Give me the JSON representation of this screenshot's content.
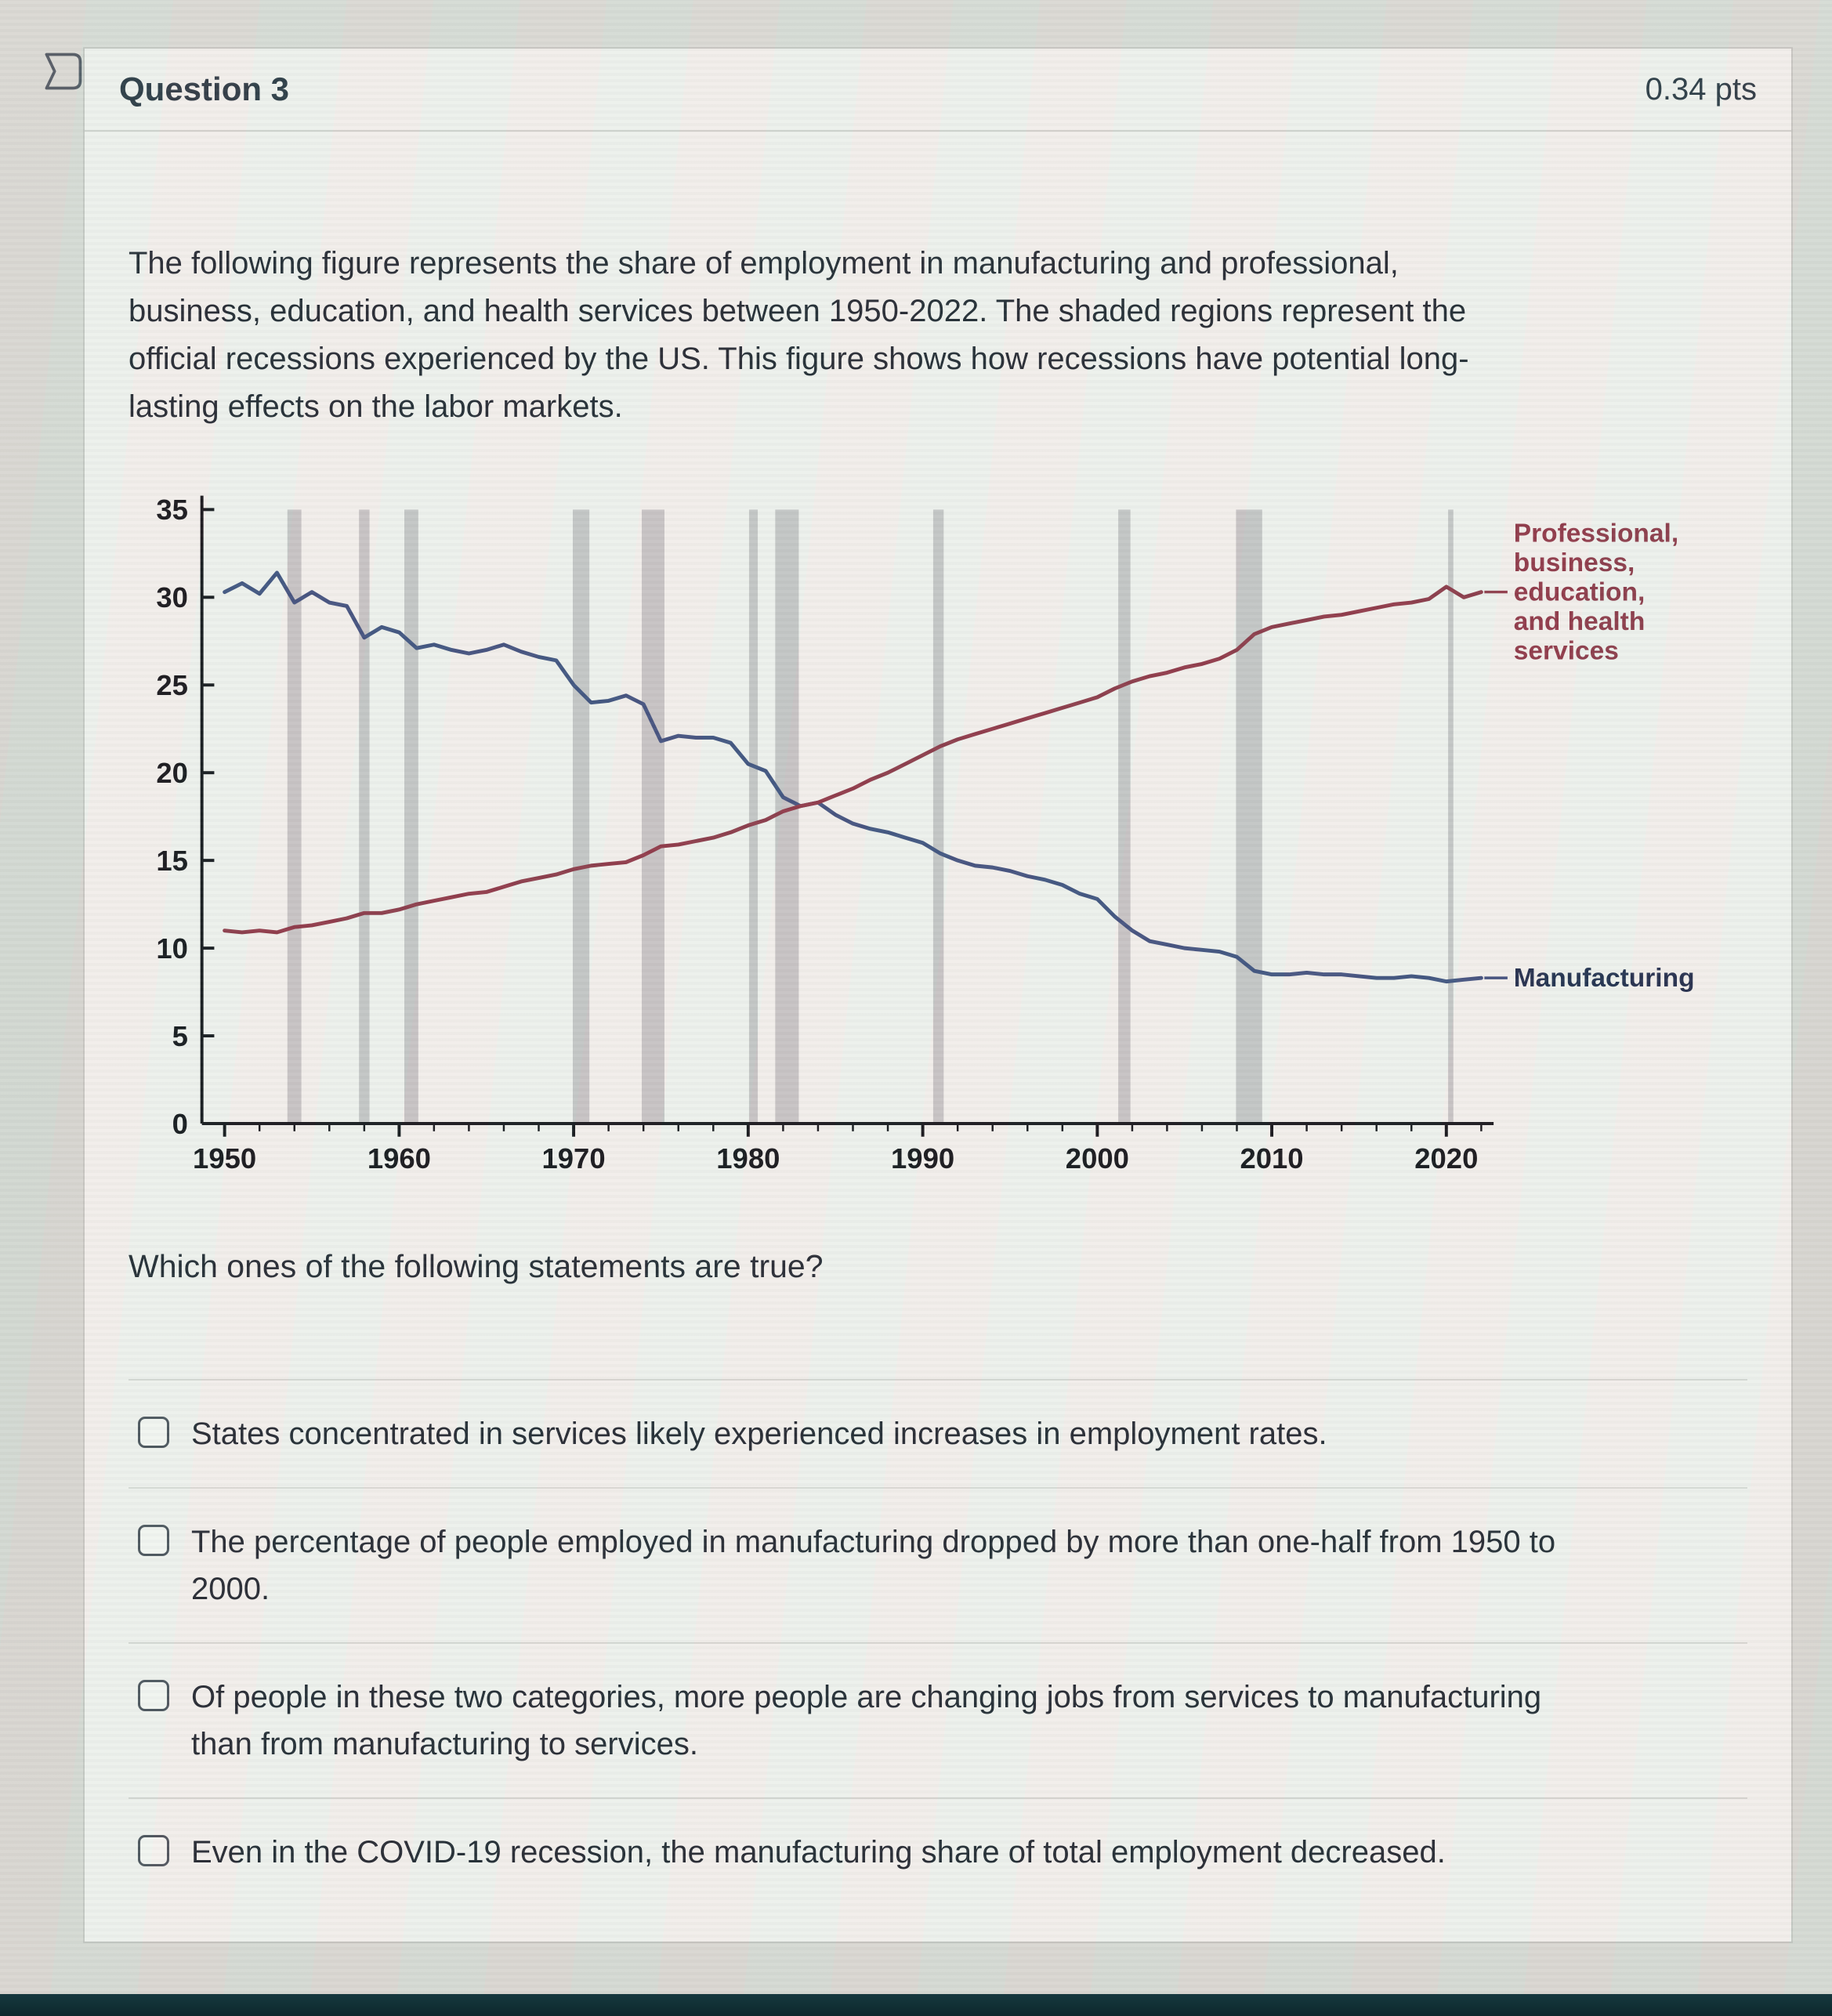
{
  "header": {
    "title": "Question 3",
    "points": "0.34 pts"
  },
  "question": {
    "paragraph": "The following figure represents the share of employment in manufacturing and professional, business, education, and health services between 1950-2022. The shaded regions represent the official recessions experienced by the US. This figure shows how recessions have potential long-lasting effects on the labor markets.",
    "prompt": "Which ones of the following statements are true?"
  },
  "options": [
    {
      "label": "States concentrated in services likely experienced increases in employment rates.",
      "checked": false
    },
    {
      "label": "The percentage of people employed in manufacturing dropped by more than one-half from 1950 to 2000.",
      "checked": false
    },
    {
      "label": "Of people in these two categories, more people are changing jobs from services to manufacturing than from manufacturing to services.",
      "checked": false
    },
    {
      "label": "Even in the COVID-19 recession, the manufacturing share of total employment decreased.",
      "checked": false
    }
  ],
  "chart_data": {
    "type": "line",
    "title": "",
    "xlabel": "",
    "ylabel": "",
    "ylim": [
      0,
      35
    ],
    "xlim": [
      1948.7,
      2023
    ],
    "yticks": [
      0,
      5,
      10,
      15,
      20,
      25,
      30,
      35
    ],
    "xticks": [
      1950,
      1960,
      1970,
      1980,
      1990,
      2000,
      2010,
      2020
    ],
    "grid": false,
    "recession_color": "#c6c6c6",
    "recessions": [
      [
        1953.6,
        1954.4
      ],
      [
        1957.7,
        1958.3
      ],
      [
        1960.3,
        1961.1
      ],
      [
        1969.95,
        1970.9
      ],
      [
        1973.9,
        1975.2
      ],
      [
        1980.05,
        1980.55
      ],
      [
        1981.55,
        1982.9
      ],
      [
        1990.6,
        1991.2
      ],
      [
        2001.2,
        2001.9
      ],
      [
        2007.95,
        2009.45
      ],
      [
        2020.1,
        2020.4
      ]
    ],
    "x": [
      1950,
      1951,
      1952,
      1953,
      1954,
      1955,
      1956,
      1957,
      1958,
      1959,
      1960,
      1961,
      1962,
      1963,
      1964,
      1965,
      1966,
      1967,
      1968,
      1969,
      1970,
      1971,
      1972,
      1973,
      1974,
      1975,
      1976,
      1977,
      1978,
      1979,
      1980,
      1981,
      1982,
      1983,
      1984,
      1985,
      1986,
      1987,
      1988,
      1989,
      1990,
      1991,
      1992,
      1993,
      1994,
      1995,
      1996,
      1997,
      1998,
      1999,
      2000,
      2001,
      2002,
      2003,
      2004,
      2005,
      2006,
      2007,
      2008,
      2009,
      2010,
      2011,
      2012,
      2013,
      2014,
      2015,
      2016,
      2017,
      2018,
      2019,
      2020,
      2021,
      2022
    ],
    "series": [
      {
        "name": "Manufacturing",
        "color": "#41537f",
        "label_color": "#22304e",
        "label_lines": [
          "Manufacturing"
        ],
        "values": [
          30.3,
          30.8,
          30.2,
          31.4,
          29.7,
          30.3,
          29.7,
          29.5,
          27.7,
          28.3,
          28.0,
          27.1,
          27.3,
          27.0,
          26.8,
          27.0,
          27.3,
          26.9,
          26.6,
          26.4,
          25.0,
          24.0,
          24.1,
          24.4,
          23.9,
          21.8,
          22.1,
          22.0,
          22.0,
          21.7,
          20.5,
          20.1,
          18.6,
          18.1,
          18.3,
          17.6,
          17.1,
          16.8,
          16.6,
          16.3,
          16.0,
          15.4,
          15.0,
          14.7,
          14.6,
          14.4,
          14.1,
          13.9,
          13.6,
          13.1,
          12.8,
          11.8,
          11.0,
          10.4,
          10.2,
          10.0,
          9.9,
          9.8,
          9.5,
          8.7,
          8.5,
          8.5,
          8.6,
          8.5,
          8.5,
          8.4,
          8.3,
          8.3,
          8.4,
          8.3,
          8.1,
          8.2,
          8.3
        ]
      },
      {
        "name": "Professional, business, education, and health services",
        "color": "#8d3a49",
        "label_color": "#8d3a49",
        "label_lines": [
          "Professional,",
          "business,",
          "education,",
          "and health",
          "services"
        ],
        "values": [
          11.0,
          10.9,
          11.0,
          10.9,
          11.2,
          11.3,
          11.5,
          11.7,
          12.0,
          12.0,
          12.2,
          12.5,
          12.7,
          12.9,
          13.1,
          13.2,
          13.5,
          13.8,
          14.0,
          14.2,
          14.5,
          14.7,
          14.8,
          14.9,
          15.3,
          15.8,
          15.9,
          16.1,
          16.3,
          16.6,
          17.0,
          17.3,
          17.8,
          18.1,
          18.3,
          18.7,
          19.1,
          19.6,
          20.0,
          20.5,
          21.0,
          21.5,
          21.9,
          22.2,
          22.5,
          22.8,
          23.1,
          23.4,
          23.7,
          24.0,
          24.3,
          24.8,
          25.2,
          25.5,
          25.7,
          26.0,
          26.2,
          26.5,
          27.0,
          27.9,
          28.3,
          28.5,
          28.7,
          28.9,
          29.0,
          29.2,
          29.4,
          29.6,
          29.7,
          29.9,
          30.6,
          30.0,
          30.3
        ]
      }
    ]
  }
}
